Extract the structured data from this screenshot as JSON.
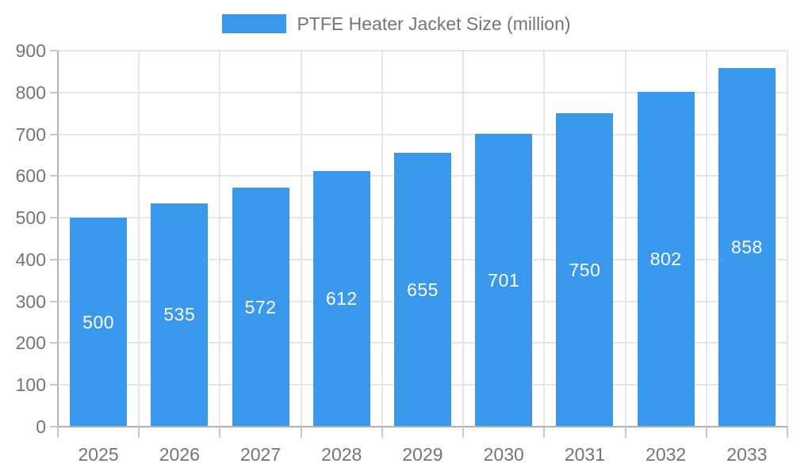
{
  "chart_data": {
    "type": "bar",
    "title": "PTFE Heater Jacket Size (million)",
    "categories": [
      "2025",
      "2026",
      "2027",
      "2028",
      "2029",
      "2030",
      "2031",
      "2032",
      "2033"
    ],
    "values": [
      500,
      535,
      572,
      612,
      655,
      701,
      750,
      802,
      858
    ],
    "xlabel": "",
    "ylabel": "",
    "ylim": [
      0,
      900
    ],
    "ytick_step": 100,
    "grid": true,
    "legend_position": "top",
    "bar_label_position": "inside-center"
  },
  "colors": {
    "bar": "#3B99ED",
    "bar_label": "#FFFFFF",
    "grid": "#E6E6E6",
    "axis": "#B2B2B2",
    "tick": "#C9C9C9",
    "text": "#757575",
    "background": "#FFFFFF"
  }
}
